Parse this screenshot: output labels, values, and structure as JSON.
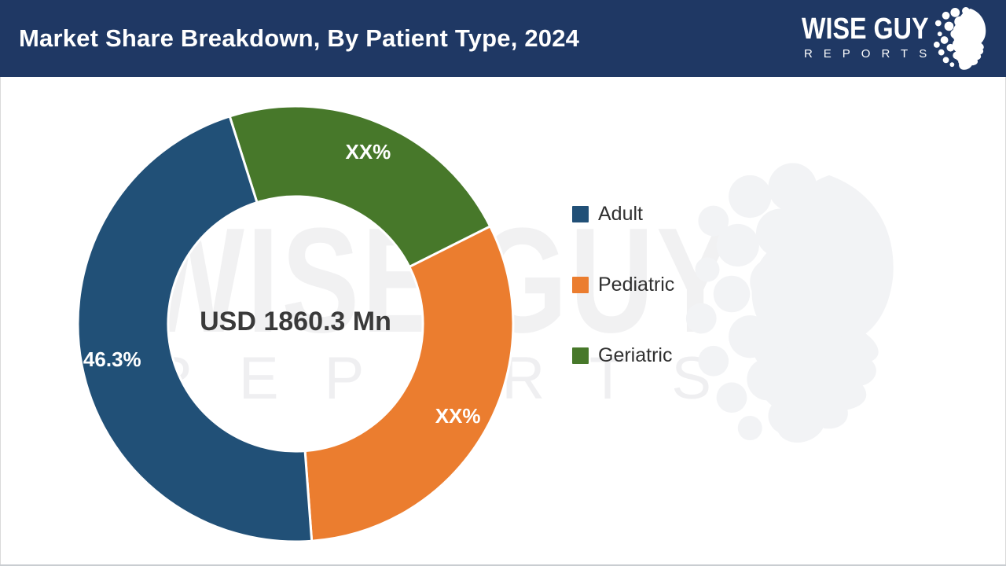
{
  "header": {
    "title": "Market Share Breakdown, By Patient Type, 2024",
    "logo": {
      "wordmark": "WISE GUY",
      "subtitle": "REPORTS"
    }
  },
  "watermark": {
    "line1": "WISE GUY",
    "line2": "REPORTS"
  },
  "chart_data": {
    "type": "pie",
    "variant": "donut",
    "title": "Market Share Breakdown, By Patient Type, 2024",
    "center_label": "USD 1860.3 Mn",
    "categories": [
      "Adult",
      "Pediatric",
      "Geriatric"
    ],
    "values": [
      46.3,
      31.2,
      22.5
    ],
    "value_labels": [
      "46.3%",
      "XX%",
      "XX%"
    ],
    "colors": [
      "#215077",
      "#EB7D2F",
      "#47782A"
    ],
    "label_color": "#FFFFFF",
    "legend_position": "right",
    "start_angle_deg": -17.6,
    "clockwise": true,
    "draw_order": [
      "Geriatric",
      "Pediatric",
      "Adult"
    ],
    "inner_radius_ratio": 0.585
  },
  "legend": {
    "items": [
      {
        "label": "Adult",
        "color": "#215077"
      },
      {
        "label": "Pediatric",
        "color": "#EB7D2F"
      },
      {
        "label": "Geriatric",
        "color": "#47782A"
      }
    ]
  },
  "theme": {
    "header_bg": "#1F3864",
    "header_text": "#FFFFFF",
    "center_label_color": "#3A3A3A",
    "watermark_color": "#F1F1F2",
    "page_bg": "#FFFFFF",
    "border_color": "#C9CDD1"
  }
}
